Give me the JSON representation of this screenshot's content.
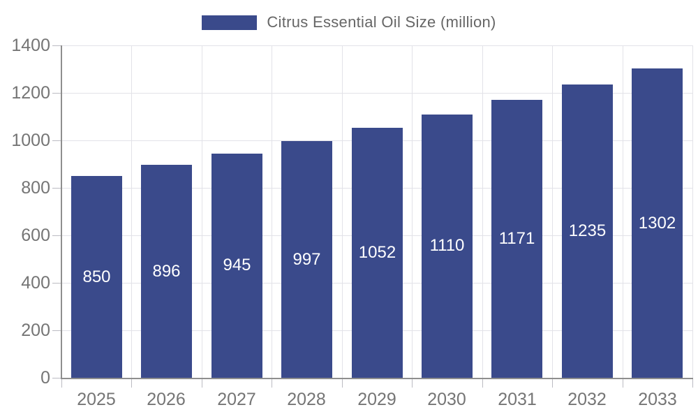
{
  "legend": {
    "label": "Citrus Essential Oil Size (million)"
  },
  "chart_data": {
    "type": "bar",
    "title": "Citrus Essential Oil Size (million)",
    "series_name": "Citrus Essential Oil Size (million)",
    "categories": [
      "2025",
      "2026",
      "2027",
      "2028",
      "2029",
      "2030",
      "2031",
      "2032",
      "2033"
    ],
    "values": [
      850,
      896,
      945,
      997,
      1052,
      1110,
      1171,
      1235,
      1302
    ],
    "xlabel": "",
    "ylabel": "",
    "ylim": [
      0,
      1400
    ],
    "y_ticks": [
      0,
      200,
      400,
      600,
      800,
      1000,
      1200,
      1400
    ],
    "grid": true,
    "legend_position": "top-center",
    "value_labels": "centered-inside-bars"
  },
  "colors": {
    "bar": "#3A4A8B",
    "grid": "#E2E2E8",
    "axis": "#8E8E8E",
    "tick": "#BBBBC2",
    "axis_label": "#757575",
    "legend_text": "#666666",
    "value_label": "#FFFFFF",
    "background": "#FFFFFF"
  }
}
